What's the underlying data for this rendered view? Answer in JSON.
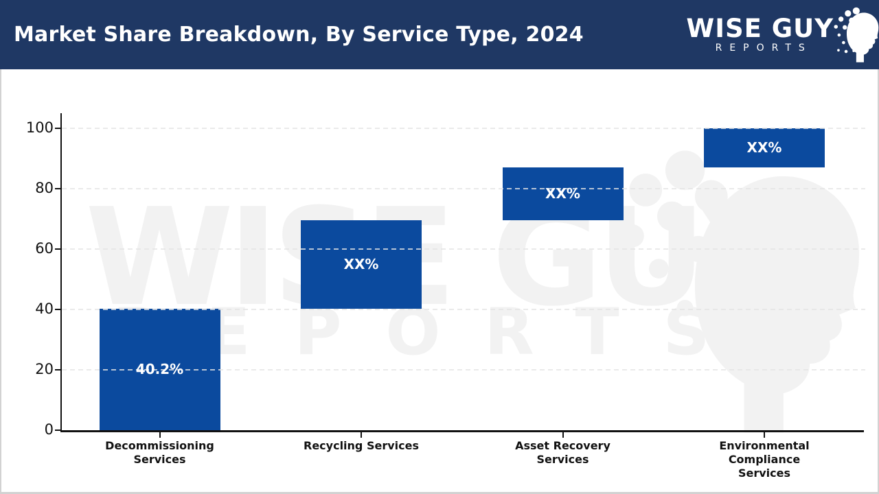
{
  "header": {
    "title": "Market Share Breakdown, By Service Type, 2024",
    "logo": {
      "line1": "WISE GUY",
      "line2": "REPORTS"
    }
  },
  "watermark": {
    "line1": "WISE GUY",
    "line2": "REPORTS"
  },
  "colors": {
    "header_bg": "#1f3864",
    "bar": "#0b4a9e",
    "grid": "#e6e6e6",
    "axis": "#111111",
    "bar_label_text": "#ffffff",
    "watermark": "#f2f2f2"
  },
  "chart_data": {
    "type": "bar",
    "subtype": "waterfall",
    "title": "Market Share Breakdown, By Service Type, 2024",
    "xlabel": "",
    "ylabel": "",
    "ylim": [
      0,
      100
    ],
    "yticks": [
      0,
      20,
      40,
      60,
      80,
      100
    ],
    "grid": "horizontal dashed",
    "legend": "none",
    "categories": [
      "Decommissioning Services",
      "Recycling Services",
      "Asset Recovery Services",
      "Environmental Compliance Services"
    ],
    "category_lines": [
      [
        "Decommissioning",
        "Services"
      ],
      [
        "Recycling Services"
      ],
      [
        "Asset Recovery",
        "Services"
      ],
      [
        "Environmental",
        "Compliance",
        "Services"
      ]
    ],
    "segments": [
      {
        "category": "Decommissioning Services",
        "start": 0,
        "end": 40.2,
        "label": "40.2%"
      },
      {
        "category": "Recycling Services",
        "start": 40.2,
        "end": 69.5,
        "label": "XX%"
      },
      {
        "category": "Asset Recovery Services",
        "start": 69.5,
        "end": 87.0,
        "label": "XX%"
      },
      {
        "category": "Environmental Compliance Services",
        "start": 87.0,
        "end": 100,
        "label": "XX%"
      }
    ]
  }
}
